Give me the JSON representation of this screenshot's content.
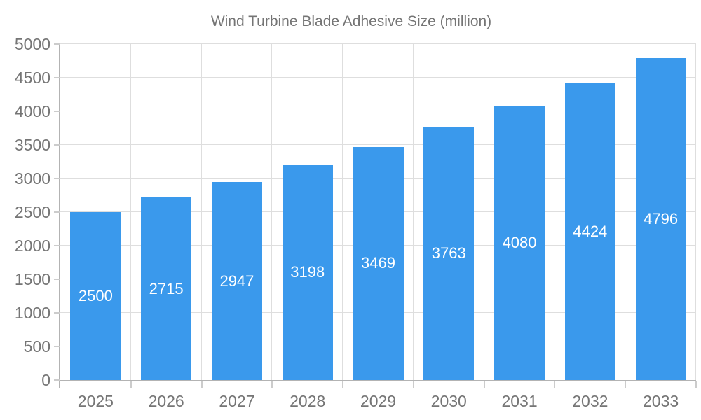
{
  "legend": {
    "label": "Wind Turbine Blade Adhesive Size (million)",
    "swatch_color": "#3A99EC"
  },
  "chart_data": {
    "type": "bar",
    "title": "Wind Turbine Blade Adhesive Size (million)",
    "categories": [
      "2025",
      "2026",
      "2027",
      "2028",
      "2029",
      "2030",
      "2031",
      "2032",
      "2033"
    ],
    "values": [
      2500,
      2715,
      2947,
      3198,
      3469,
      3763,
      4080,
      4424,
      4796
    ],
    "xlabel": "",
    "ylabel": "",
    "ylim": [
      0,
      5000
    ],
    "yticks": [
      0,
      500,
      1000,
      1500,
      2000,
      2500,
      3000,
      3500,
      4000,
      4500,
      5000
    ],
    "grid": true,
    "legend_position": "top-center",
    "bar_color": "#3A99EC",
    "bar_label_color": "#ffffff",
    "axis_text_color": "#757575",
    "grid_color": "#dedede",
    "axis_line_color": "#b3b3b3"
  }
}
